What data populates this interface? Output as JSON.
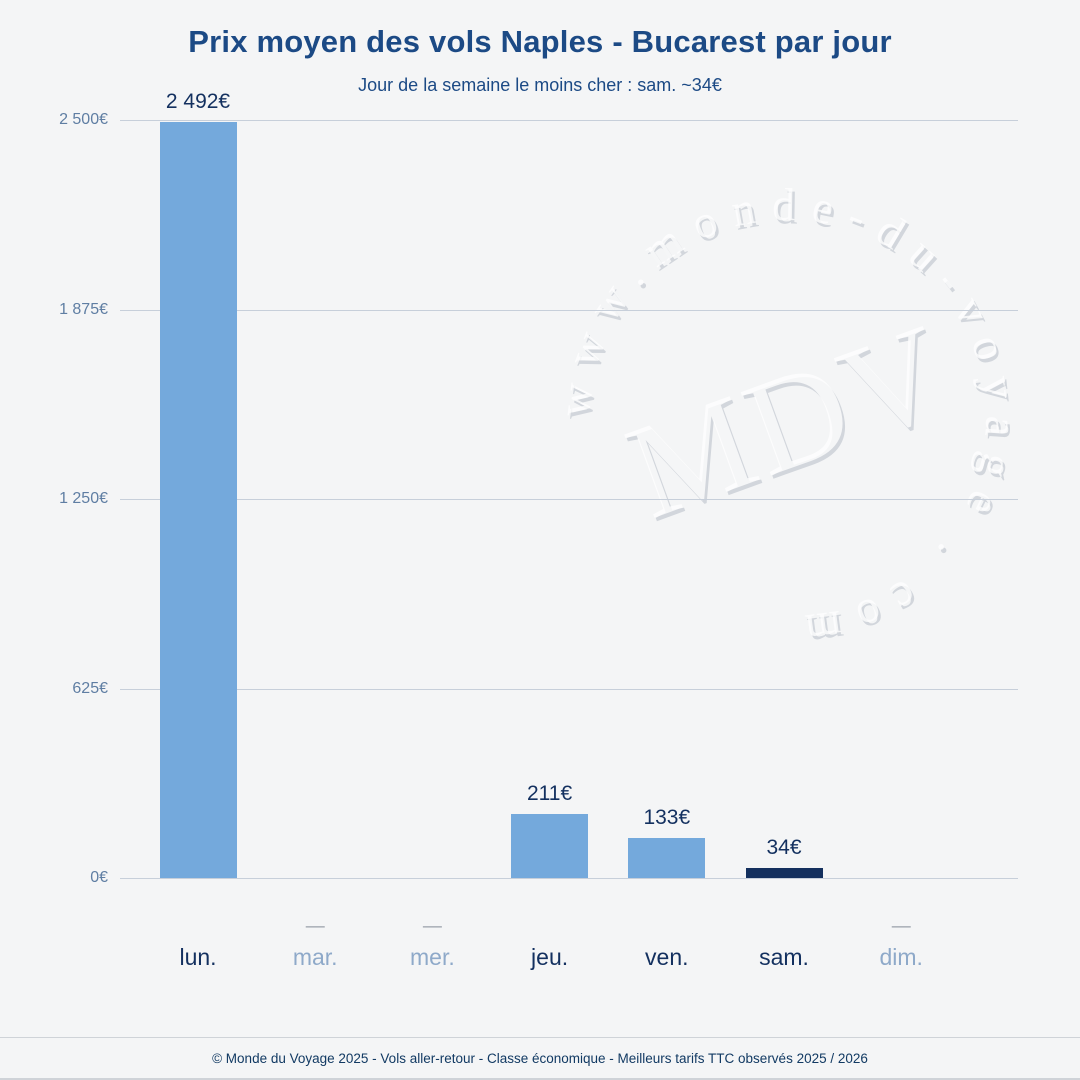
{
  "page": {
    "title": "Prix moyen des vols Naples - Bucarest par jour",
    "subtitle": "Jour de la semaine le moins cher : sam. ~34€",
    "footer": "© Monde du Voyage 2025 - Vols aller-retour - Classe économique - Meilleurs tarifs TTC observés 2025 / 2026"
  },
  "watermark": {
    "ring_text": "www.monde-du-voyage . com",
    "center_text": "MDV"
  },
  "chart_data": {
    "type": "bar",
    "title": "Prix moyen des vols Naples - Bucarest par jour",
    "subtitle": "Jour de la semaine le moins cher : sam. ~34€",
    "categories": [
      "lun.",
      "mar.",
      "mer.",
      "jeu.",
      "ven.",
      "sam.",
      "dim."
    ],
    "values": [
      2492,
      null,
      null,
      211,
      133,
      34,
      null
    ],
    "bar_labels": [
      "2 492€",
      "",
      "",
      "211€",
      "133€",
      "34€",
      ""
    ],
    "no_data_marker": "—",
    "ylim": [
      0,
      2500
    ],
    "yticks": [
      2500,
      1875,
      1250,
      625,
      0
    ],
    "ytick_labels": [
      "2 500€",
      "1 875€",
      "1 250€",
      "625€",
      "0€"
    ],
    "highlight_index": 5,
    "grid": true,
    "legend": false,
    "colors": {
      "bar": "#74a9dc",
      "highlight": "#14305e",
      "title": "#1c4a85",
      "axis_text": "#5f7ea3",
      "gridline": "#c7cfda"
    }
  }
}
